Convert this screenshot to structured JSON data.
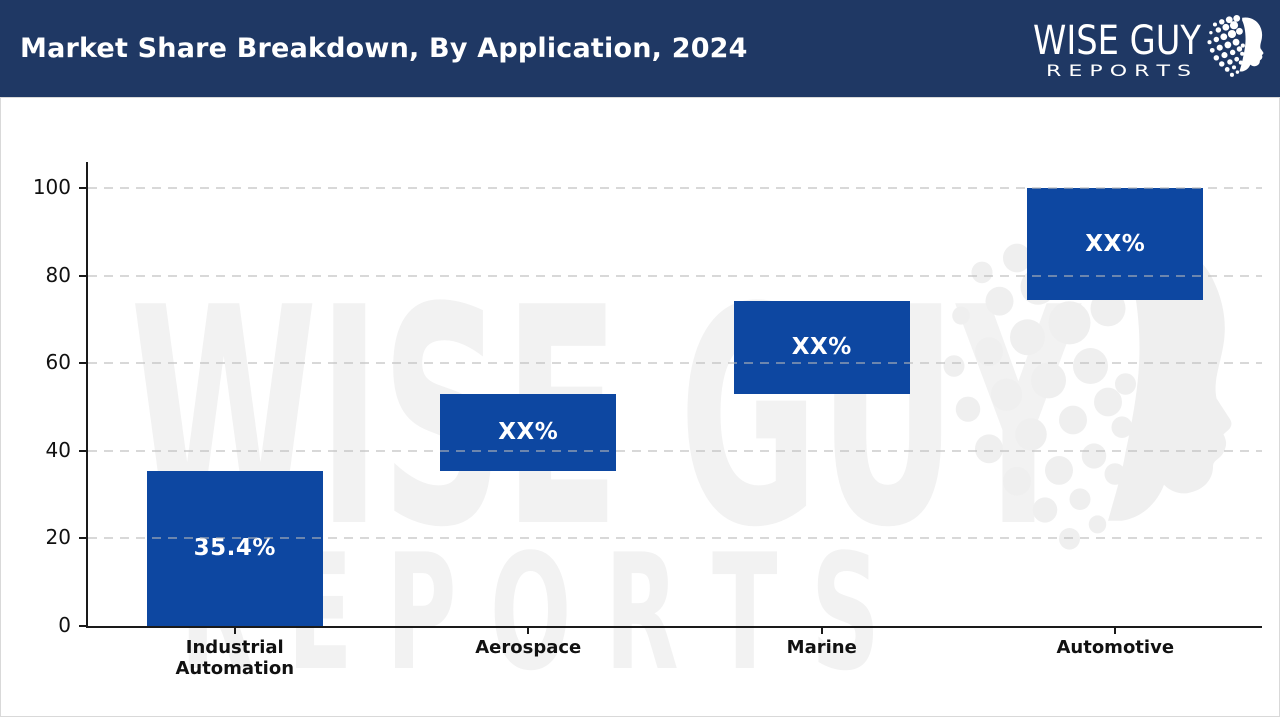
{
  "header": {
    "title": "Market Share Breakdown, By Application, 2024",
    "brand": {
      "name": "WISE GUY",
      "sub": "R E P O R T S"
    }
  },
  "watermark": {
    "name": "WISE GUY",
    "sub": "R E P O R T S"
  },
  "chart_data": {
    "type": "bar",
    "variant": "waterfall",
    "title": "Market Share Breakdown, By Application, 2024",
    "categories": [
      "Industrial Automation",
      "Aerospace",
      "Marine",
      "Automotive"
    ],
    "segments": [
      {
        "category": "Industrial Automation",
        "start": 0,
        "end": 35.4,
        "label": "35.4%"
      },
      {
        "category": "Aerospace",
        "start": 35.4,
        "end": 53,
        "label": "XX%"
      },
      {
        "category": "Marine",
        "start": 53,
        "end": 74.3,
        "label": "XX%"
      },
      {
        "category": "Automotive",
        "start": 74.4,
        "end": 100,
        "label": "XX%"
      }
    ],
    "ylim": [
      0,
      100
    ],
    "y_ticks": [
      0,
      20,
      40,
      60,
      80,
      100
    ],
    "xlabel": "",
    "ylabel": "",
    "grid": "horizontal-dashed",
    "legend": "none",
    "bar_color": "#0d47a1",
    "bar_label_color": "#ffffff"
  },
  "colors": {
    "header_bg": "#1f3864",
    "bar": "#0d47a1",
    "grid_line": "#d8d8d8",
    "axis": "#1a1a1a",
    "watermark": "#f2f2f2"
  }
}
